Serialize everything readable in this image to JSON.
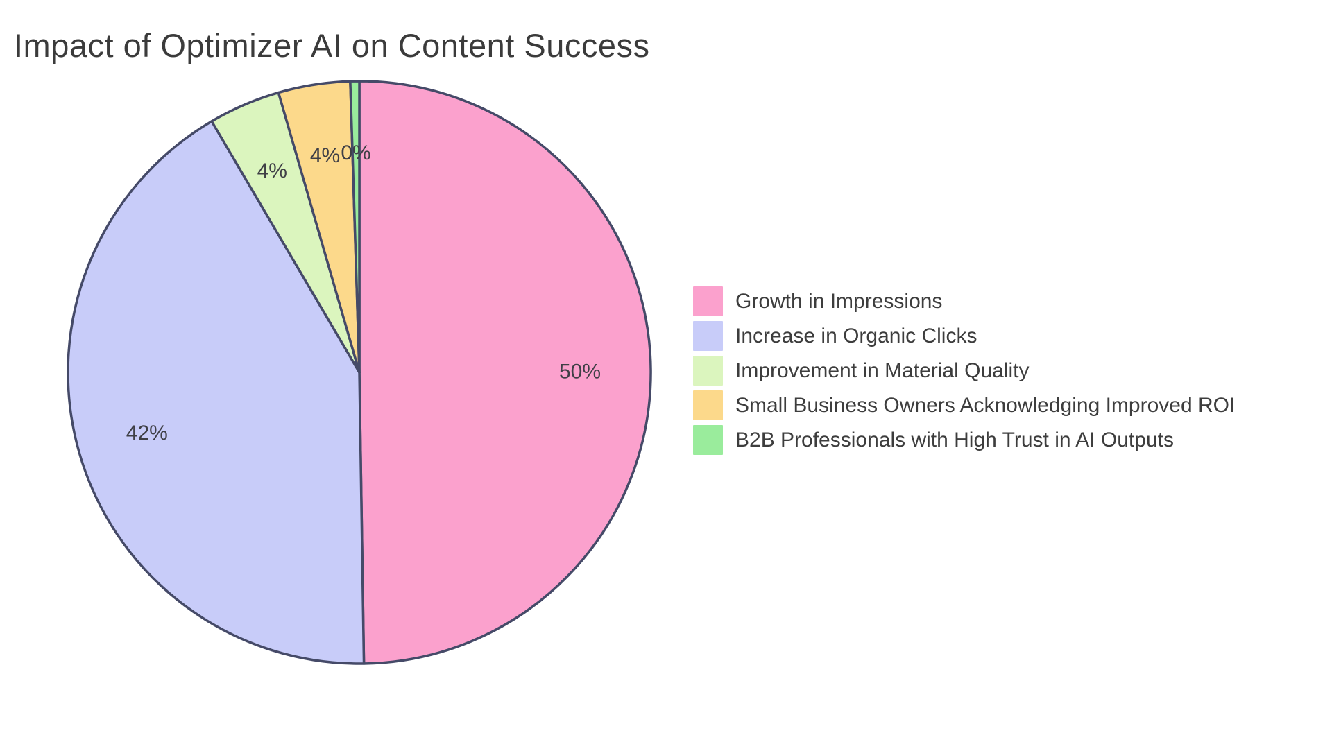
{
  "title": "Impact of Optimizer AI on Content Success",
  "chart_data": {
    "type": "pie",
    "title": "Impact of Optimizer AI on Content Success",
    "labels": [
      "Growth in Impressions",
      "Increase in Organic Clicks",
      "Improvement in Material Quality",
      "Small Business Owners Acknowledging Improved ROI",
      "B2B Professionals with High Trust in AI Outputs"
    ],
    "values": [
      50,
      42,
      4,
      4,
      0.5
    ],
    "slice_labels": [
      "50%",
      "42%",
      "4%",
      "4%",
      "0%"
    ],
    "colors": [
      "#FBA1CD",
      "#C8CCF9",
      "#DBF5BE",
      "#FCD98B",
      "#9AEC9C"
    ],
    "stroke_color": "#454a68",
    "label_color": "#3f3f46",
    "background_color": "#ffffff",
    "start_angle": "12-o-clock",
    "direction": "clockwise",
    "legend_position": "right",
    "grid": false
  }
}
